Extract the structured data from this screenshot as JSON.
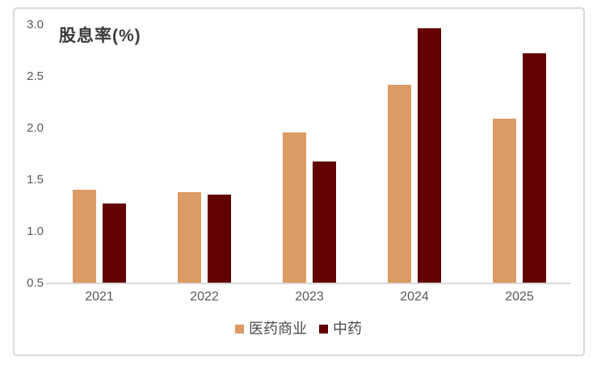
{
  "chart_data": {
    "type": "bar",
    "title": "股息率(%)",
    "categories": [
      "2021",
      "2022",
      "2023",
      "2024",
      "2025"
    ],
    "series": [
      {
        "name": "医药商业",
        "color": "#DC9A64",
        "values": [
          1.41,
          1.38,
          1.96,
          2.42,
          2.09
        ]
      },
      {
        "name": "中药",
        "color": "#630100",
        "values": [
          1.27,
          1.36,
          1.68,
          2.97,
          2.73
        ]
      }
    ],
    "xlabel": "",
    "ylabel": "",
    "ylim": [
      0.5,
      3.0
    ],
    "yticks": [
      3.0,
      2.5,
      2.0,
      1.5,
      1.0,
      0.5
    ],
    "ytick_format_decimals": 1,
    "grid": false,
    "legend_position": "bottom-center",
    "colors": {
      "axis_line": "#D9D9D9",
      "tick_label": "#595959",
      "title": "#3B3B3B",
      "legend_label": "#4A4A4A",
      "card_border": "#D9D9D9",
      "background": "#FFFFFF"
    }
  }
}
